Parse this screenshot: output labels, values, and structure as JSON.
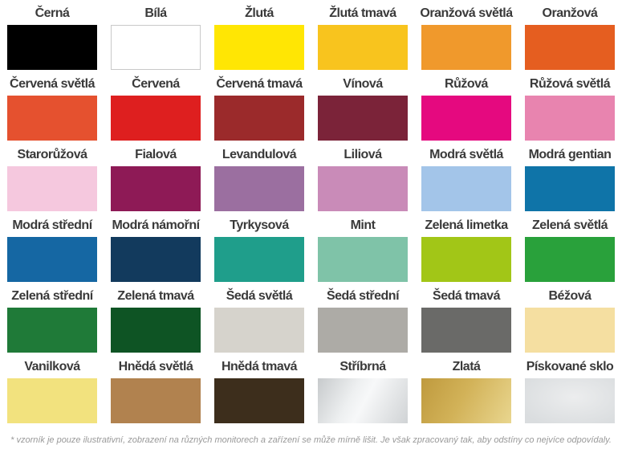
{
  "palette": {
    "swatches": [
      {
        "name": "Černá",
        "fill": "#000000"
      },
      {
        "name": "Bílá",
        "fill": "#ffffff",
        "border": "#c9c9c9"
      },
      {
        "name": "Žlutá",
        "fill": "#ffe604"
      },
      {
        "name": "Žlutá tmavá",
        "fill": "#f8c41e"
      },
      {
        "name": "Oranžová světlá",
        "fill": "#f0992c"
      },
      {
        "name": "Oranžová",
        "fill": "#e55e20"
      },
      {
        "name": "Červená světlá",
        "fill": "#e5512f"
      },
      {
        "name": "Červená",
        "fill": "#de1f1f"
      },
      {
        "name": "Červená tmavá",
        "fill": "#9b2a2b"
      },
      {
        "name": "Vínová",
        "fill": "#7b2339"
      },
      {
        "name": "Růžová",
        "fill": "#e5097f"
      },
      {
        "name": "Růžová světlá",
        "fill": "#e884af"
      },
      {
        "name": "Starorůžová",
        "fill": "#f5c8de"
      },
      {
        "name": "Fialová",
        "fill": "#8e1a56"
      },
      {
        "name": "Levandulová",
        "fill": "#9b6fa0"
      },
      {
        "name": "Liliová",
        "fill": "#c98bb8"
      },
      {
        "name": "Modrá světlá",
        "fill": "#a3c5e9"
      },
      {
        "name": "Modrá gentian",
        "fill": "#0f74a8"
      },
      {
        "name": "Modrá střední",
        "fill": "#1567a3"
      },
      {
        "name": "Modrá námořní",
        "fill": "#123a5d"
      },
      {
        "name": "Tyrkysová",
        "fill": "#1f9e8b"
      },
      {
        "name": "Mint",
        "fill": "#7fc3a8"
      },
      {
        "name": "Zelená limetka",
        "fill": "#a2c617"
      },
      {
        "name": "Zelená světlá",
        "fill": "#29a13b"
      },
      {
        "name": "Zelená střední",
        "fill": "#1f7a38"
      },
      {
        "name": "Zelená tmavá",
        "fill": "#0e5424"
      },
      {
        "name": "Šedá světlá",
        "fill": "#d6d3cc"
      },
      {
        "name": "Šedá střední",
        "fill": "#adaba6"
      },
      {
        "name": "Šedá tmavá",
        "fill": "#6a6a68"
      },
      {
        "name": "Béžová",
        "fill": "#f5dfa1"
      },
      {
        "name": "Vanilková",
        "fill": "#f2e27e"
      },
      {
        "name": "Hnědá světlá",
        "fill": "#b1824f"
      },
      {
        "name": "Hnědá tmavá",
        "fill": "#3d2e1c"
      },
      {
        "name": "Stříbrná",
        "fill": "linear-gradient(118deg, #c7cacc 0%, #eef0f1 38%, #f7f8f9 52%, #d0d3d5 100%)"
      },
      {
        "name": "Zlatá",
        "fill": "linear-gradient(118deg, #bf9a3e 0%, #d2b258 45%, #e9d68f 100%)"
      },
      {
        "name": "Pískované sklo",
        "fill": "radial-gradient(ellipse at 55% 42%, #ecedee 0%, #dadddf 85%)"
      }
    ]
  },
  "footnote": {
    "text": "* vzorník je pouze ilustrativní, zobrazení na různých monitorech a zařízení se může mírně lišit. Je však zpracovaný tak, aby odstíny co nejvíce odpovídaly."
  },
  "colors": {
    "background": "#ffffff",
    "label_text": "#3a3a3a",
    "footnote_text": "#999999",
    "white_swatch_border": "#c9c9c9"
  }
}
